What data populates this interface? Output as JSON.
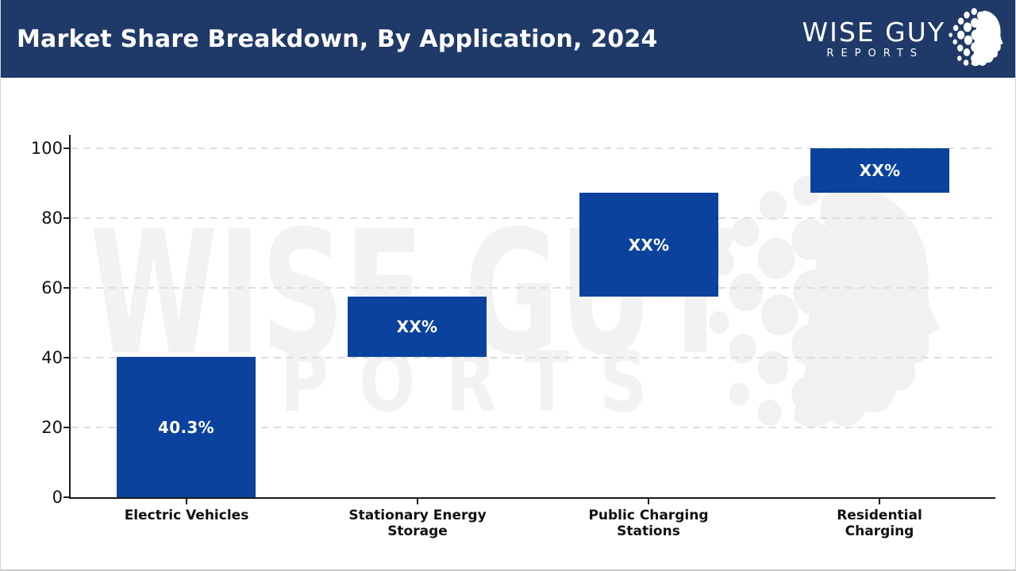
{
  "header": {
    "title": "Market Share Breakdown, By Application, 2024",
    "bg_color": "#1f3a68",
    "logo": {
      "line1": "WISE GUY",
      "line2": "REPORTS"
    }
  },
  "watermark": {
    "line1": "WISE GUY",
    "line2": "PORTS"
  },
  "chart_data": {
    "type": "bar",
    "subtype": "waterfall",
    "title": "Market Share Breakdown, By Application, 2024",
    "categories": [
      "Electric Vehicles",
      "Stationary Energy Storage",
      "Public Charging Stations",
      "Residential Charging"
    ],
    "category_lines": [
      [
        "Electric Vehicles"
      ],
      [
        "Stationary Energy",
        "Storage"
      ],
      [
        "Public Charging",
        "Stations"
      ],
      [
        "Residential",
        "Charging"
      ]
    ],
    "segments": [
      {
        "category": "Electric Vehicles",
        "start": 0,
        "end": 40.3,
        "label": "40.3%"
      },
      {
        "category": "Stationary Energy Storage",
        "start": 40.3,
        "end": 57.5,
        "label": "XX%"
      },
      {
        "category": "Public Charging Stations",
        "start": 57.5,
        "end": 87.3,
        "label": "XX%"
      },
      {
        "category": "Residential Charging",
        "start": 87.3,
        "end": 100,
        "label": "XX%"
      }
    ],
    "xlabel": "",
    "ylabel": "",
    "ylim": [
      0,
      100
    ],
    "yticks": [
      0,
      20,
      40,
      60,
      80,
      100
    ],
    "grid": "horizontal-dashed",
    "legend": "none",
    "bar_color": "#0a429e",
    "bar_label_color": "#ffffff",
    "axis_color": "#1a1a1a",
    "grid_color": "#dedede"
  }
}
